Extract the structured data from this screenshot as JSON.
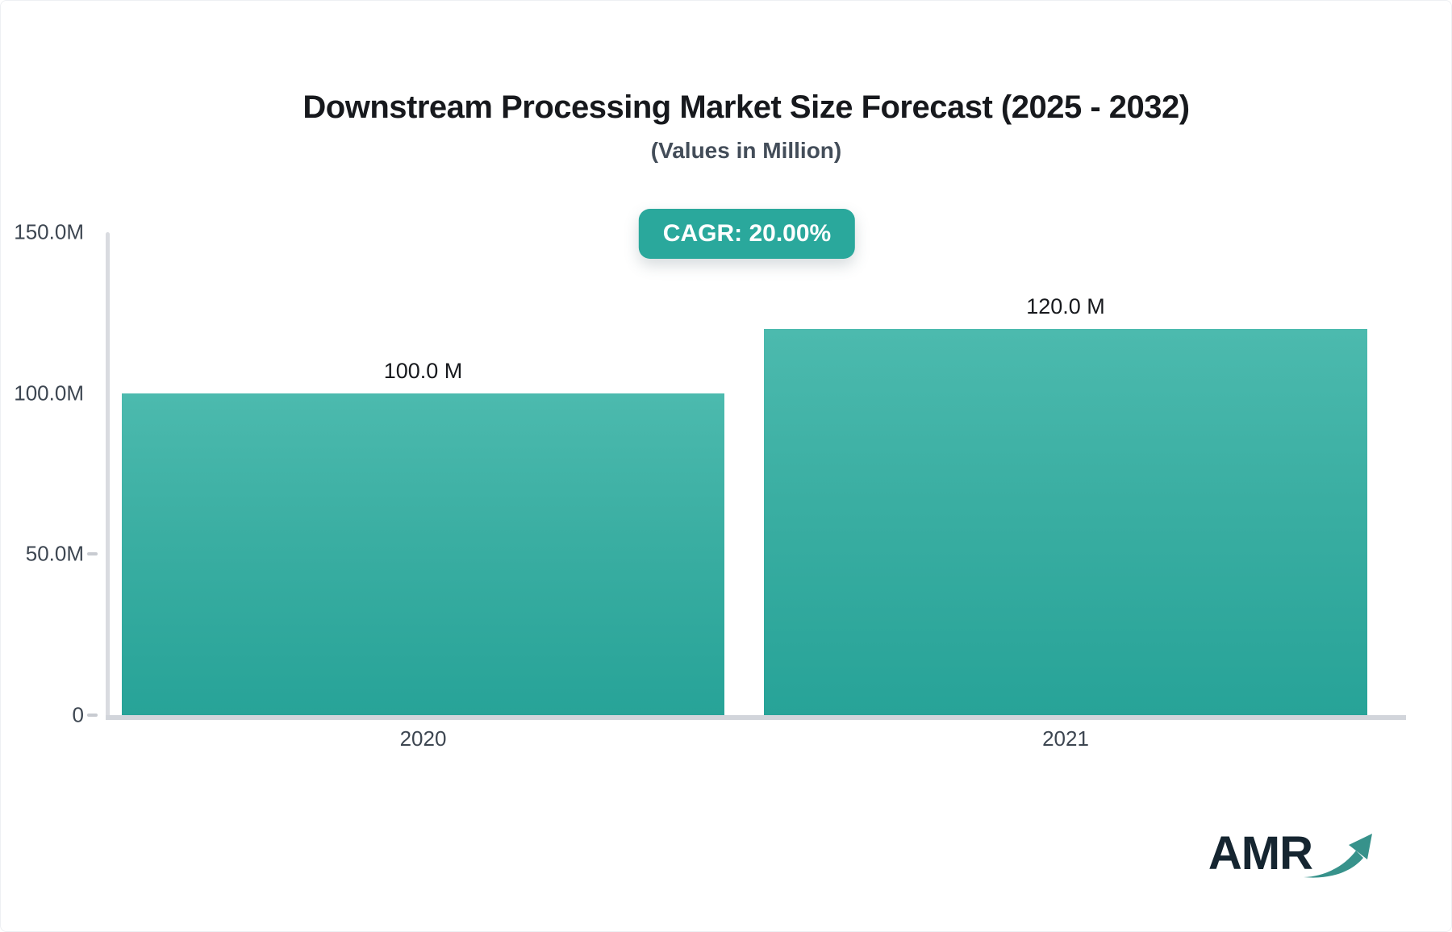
{
  "title": "Downstream Processing Market Size Forecast (2025 - 2032)",
  "subtitle": "(Values in Million)",
  "cagr_badge": "CAGR: 20.00%",
  "logo": {
    "text": "AMR"
  },
  "colors": {
    "accent_teal": "#2aa89c",
    "bar_gradient_top": "#4cbaae",
    "bar_gradient_bottom": "#27a398",
    "axis_line": "#d5d8dd",
    "tick_text": "#3d4651",
    "title_text": "#17191d",
    "subtitle_text": "#434d59",
    "logo_text": "#152530",
    "logo_arrow": "#37928b"
  },
  "chart_data": {
    "type": "bar",
    "title": "Downstream Processing Market Size Forecast (2025 - 2032)",
    "subtitle": "(Values in Million)",
    "categories": [
      "2020",
      "2021"
    ],
    "values": [
      100.0,
      120.0
    ],
    "bar_labels": [
      "100.0 M",
      "120.0 M"
    ],
    "value_unit": "Million",
    "cagr_percent": 20.0,
    "ylim": [
      0,
      150
    ],
    "ytick_values": [
      150,
      100,
      50,
      0
    ],
    "ytick_labels": [
      "150.0M",
      "100.0M",
      "50.0M",
      "0"
    ],
    "grid": false,
    "legend": "none"
  }
}
